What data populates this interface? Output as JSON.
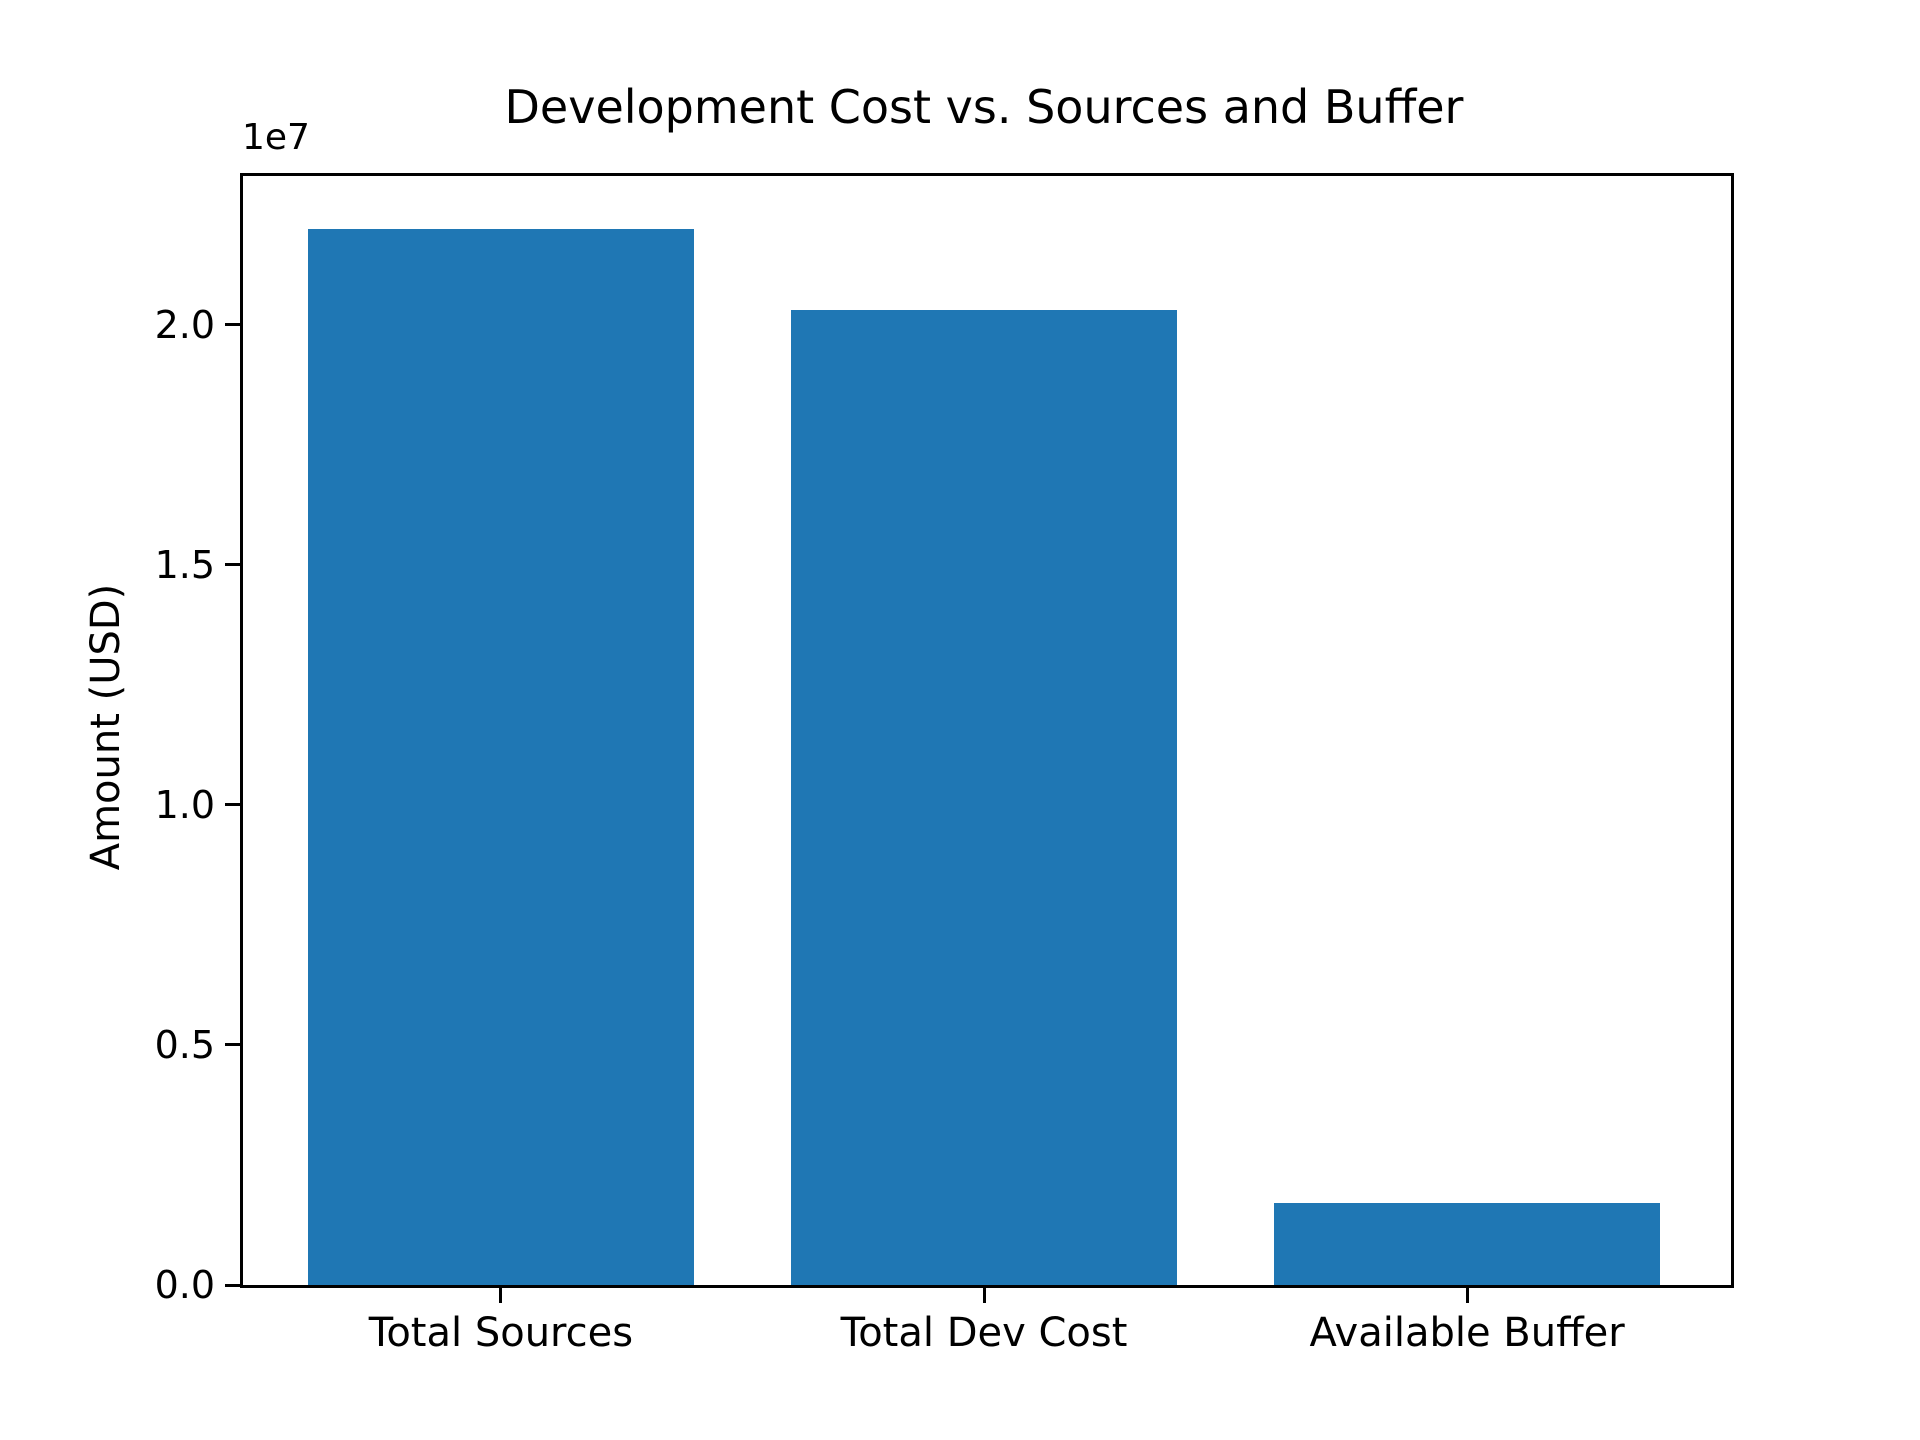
{
  "chart_data": {
    "type": "bar",
    "title": "Development Cost vs. Sources and Buffer",
    "xlabel": "",
    "ylabel": "Amount (USD)",
    "offset_text": "1e7",
    "categories": [
      "Total Sources",
      "Total Dev Cost",
      "Available Buffer"
    ],
    "values": [
      22000000,
      20300000,
      1700000
    ],
    "bar_color": "#1f77b4",
    "xlim": [
      -0.54,
      2.54
    ],
    "ylim": [
      0,
      23100000
    ],
    "yticks": [
      0,
      5000000,
      10000000,
      15000000,
      20000000
    ],
    "ytick_labels": [
      "0.0",
      "0.5",
      "1.0",
      "1.5",
      "2.0"
    ],
    "bar_width": 0.8,
    "grid": false,
    "legend": null
  }
}
